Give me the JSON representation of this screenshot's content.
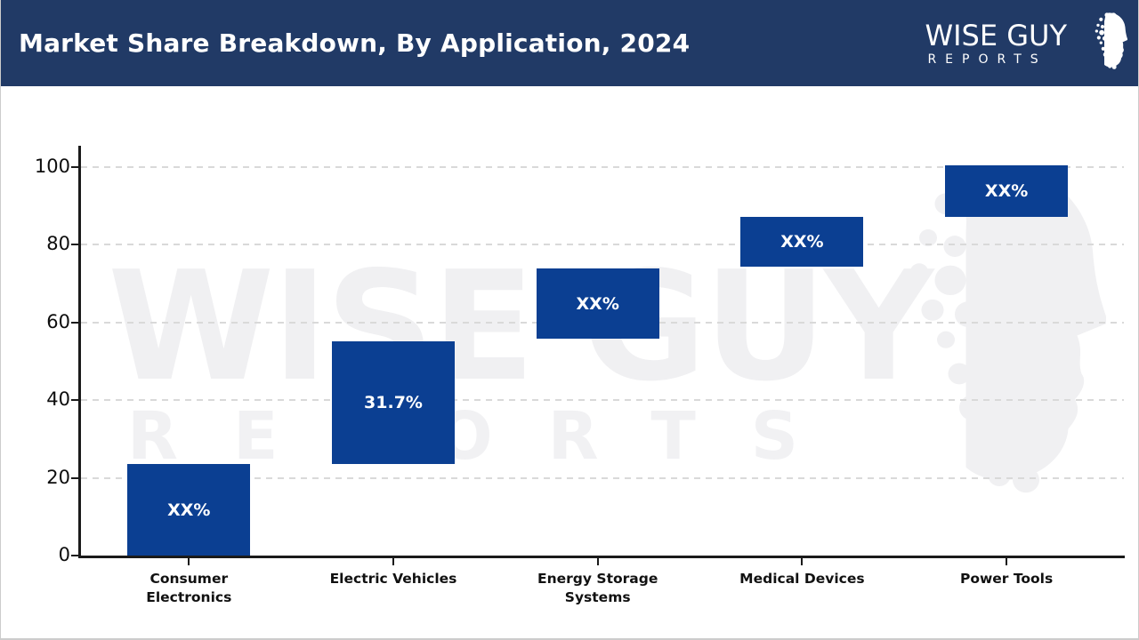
{
  "header": {
    "title": "Market Share Breakdown, By Application, 2024",
    "logo": {
      "line1": "WISE GUY",
      "line2": "REPORTS"
    }
  },
  "watermark": {
    "line1": "WISE GUY",
    "line2": "REPORTS"
  },
  "chart_data": {
    "type": "bar",
    "subtype": "waterfall-floating-bars",
    "title": "Market Share Breakdown, By Application, 2024",
    "categories": [
      "Consumer\nElectronics",
      "Electric Vehicles",
      "Energy Storage\nSystems",
      "Medical Devices",
      "Power Tools"
    ],
    "bars": [
      {
        "from": 0,
        "to": 23.5,
        "label": "XX%"
      },
      {
        "from": 23.5,
        "to": 55.2,
        "label": "31.7%"
      },
      {
        "from": 55.8,
        "to": 73.8,
        "label": "XX%"
      },
      {
        "from": 74.3,
        "to": 87.2,
        "label": "XX%"
      },
      {
        "from": 87.2,
        "to": 100.3,
        "label": "XX%"
      }
    ],
    "yticks": [
      "0",
      "20",
      "40",
      "60",
      "80",
      "100"
    ],
    "ylim": [
      0,
      105
    ],
    "xlabel": "",
    "ylabel": "",
    "grid": "horizontal-dashed",
    "legend": "none",
    "colors": {
      "bar": "#0b3f92",
      "bar_label": "#ffffff",
      "header_bg": "#213a66",
      "header_text": "#ffffff",
      "axis": "#1a1a1a",
      "gridline": "#d9d9d9",
      "watermark": "#f0f0f2"
    }
  }
}
